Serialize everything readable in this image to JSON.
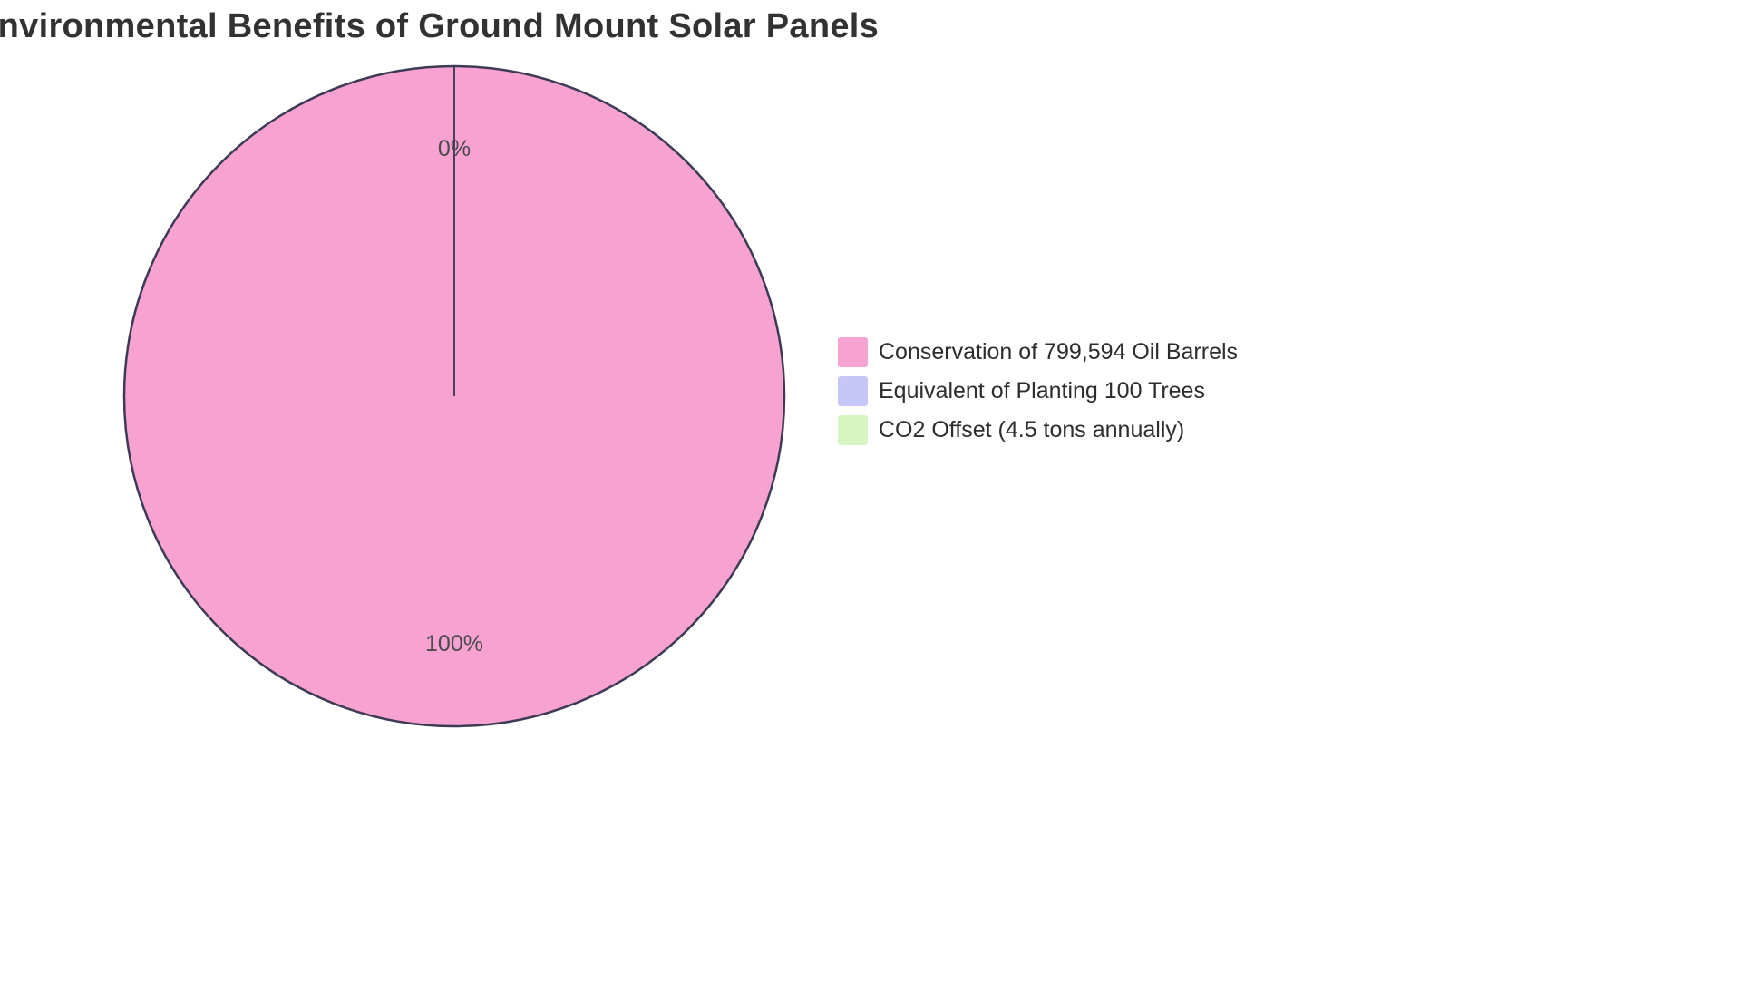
{
  "chart_data": {
    "type": "pie",
    "title": "Environmental Benefits of Ground Mount Solar Panels",
    "slices": [
      {
        "label": "Conservation of 799,594 Oil Barrels",
        "value": 100,
        "percent_label": "100%",
        "color": "#F8A2D2"
      },
      {
        "label": "Equivalent of Planting 100 Trees",
        "value": 0,
        "percent_label": "0%",
        "color": "#C6C7F8"
      },
      {
        "label": "CO2 Offset (4.5 tons annually)",
        "value": 0,
        "percent_label": "0%",
        "color": "#D7F4C3"
      }
    ],
    "legend_position": "right",
    "outline_color": "#3D3A56",
    "label_color": "#4A4A4A",
    "title_color": "#323232"
  }
}
